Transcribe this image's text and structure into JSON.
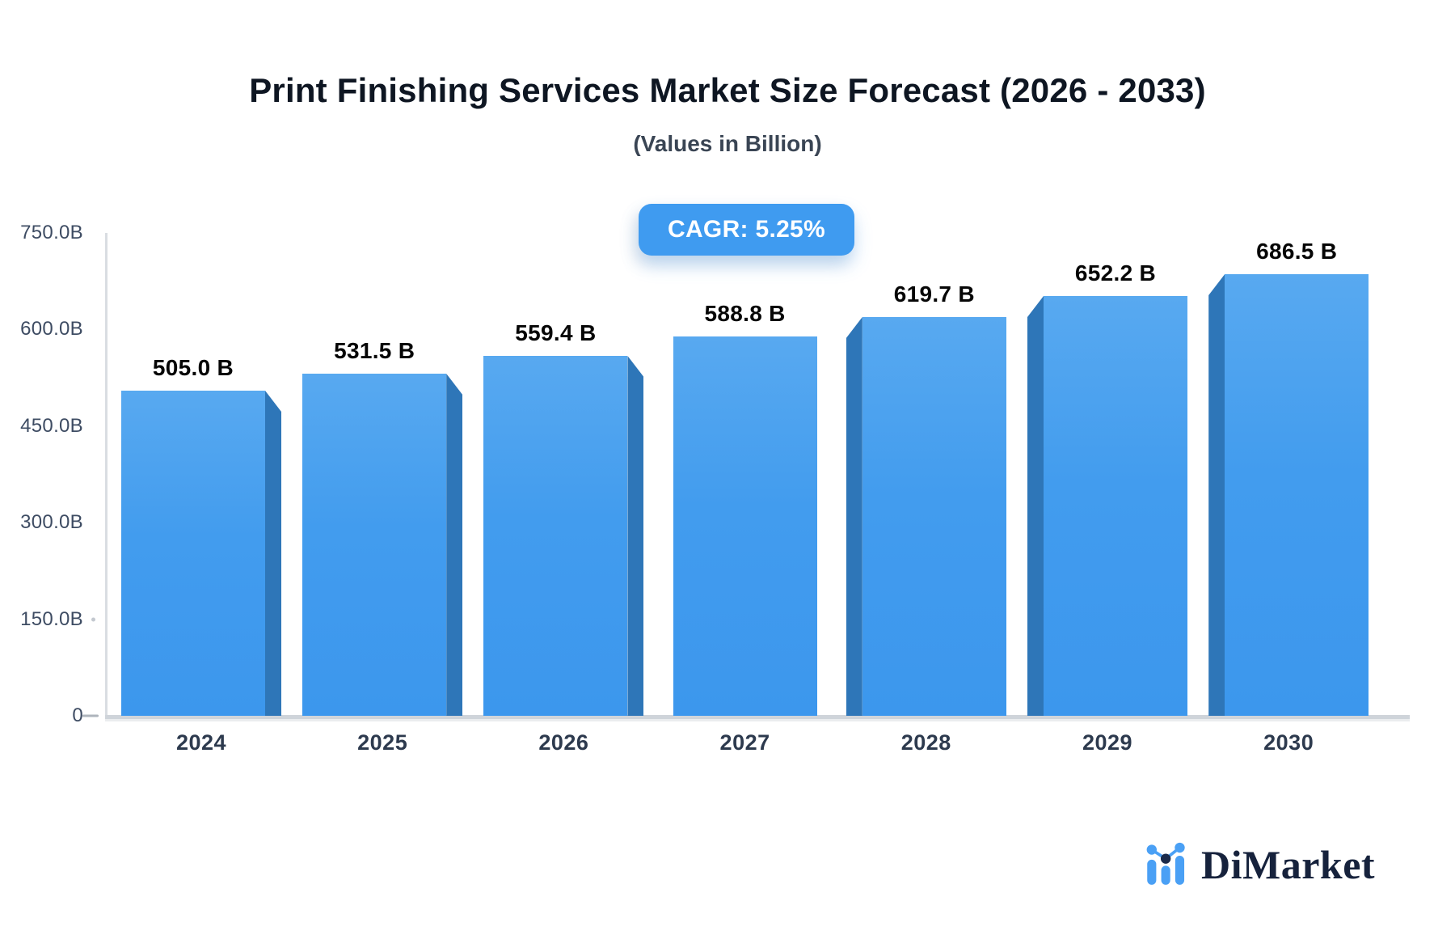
{
  "title": "Print Finishing Services Market Size Forecast (2026 - 2033)",
  "subtitle": "(Values in Billion)",
  "badge": {
    "label": "CAGR: 5.25%",
    "background": "#3f9bf0",
    "text_color": "#ffffff"
  },
  "chart_data": {
    "type": "bar",
    "title": "Print Finishing Services Market Size Forecast (2026 - 2033)",
    "subtitle": "(Values in Billion)",
    "categories": [
      "2024",
      "2025",
      "2026",
      "2027",
      "2028",
      "2029",
      "2030"
    ],
    "values": [
      505.0,
      531.5,
      559.4,
      588.8,
      619.7,
      652.2,
      686.5
    ],
    "value_labels": [
      "505.0 B",
      "531.5 B",
      "559.4 B",
      "588.8 B",
      "619.7 B",
      "652.2 B",
      "686.5 B"
    ],
    "xlabel": "",
    "ylabel": "",
    "ylim": [
      0,
      750
    ],
    "yticks": [
      {
        "value": 750,
        "label": "750.0B",
        "marker": "none"
      },
      {
        "value": 600,
        "label": "600.0B",
        "marker": "none"
      },
      {
        "value": 450,
        "label": "450.0B",
        "marker": "none"
      },
      {
        "value": 300,
        "label": "300.0B",
        "marker": "none"
      },
      {
        "value": 150,
        "label": "150.0B",
        "marker": "dot"
      },
      {
        "value": 0,
        "label": "0",
        "marker": "dash"
      }
    ],
    "grid": false,
    "legend_position": "none",
    "bar_color": "#429cee",
    "bar_color_light": "#58a9f0",
    "bar_side_color": "#2e76b8",
    "annotation": "CAGR: 5.25%"
  },
  "logo": {
    "text": "DiMarket",
    "icon": "bar-chart-logo-icon",
    "icon_color": "#4aa0f5",
    "icon_dot_color": "#1b2a4a",
    "text_color": "#16223c"
  }
}
